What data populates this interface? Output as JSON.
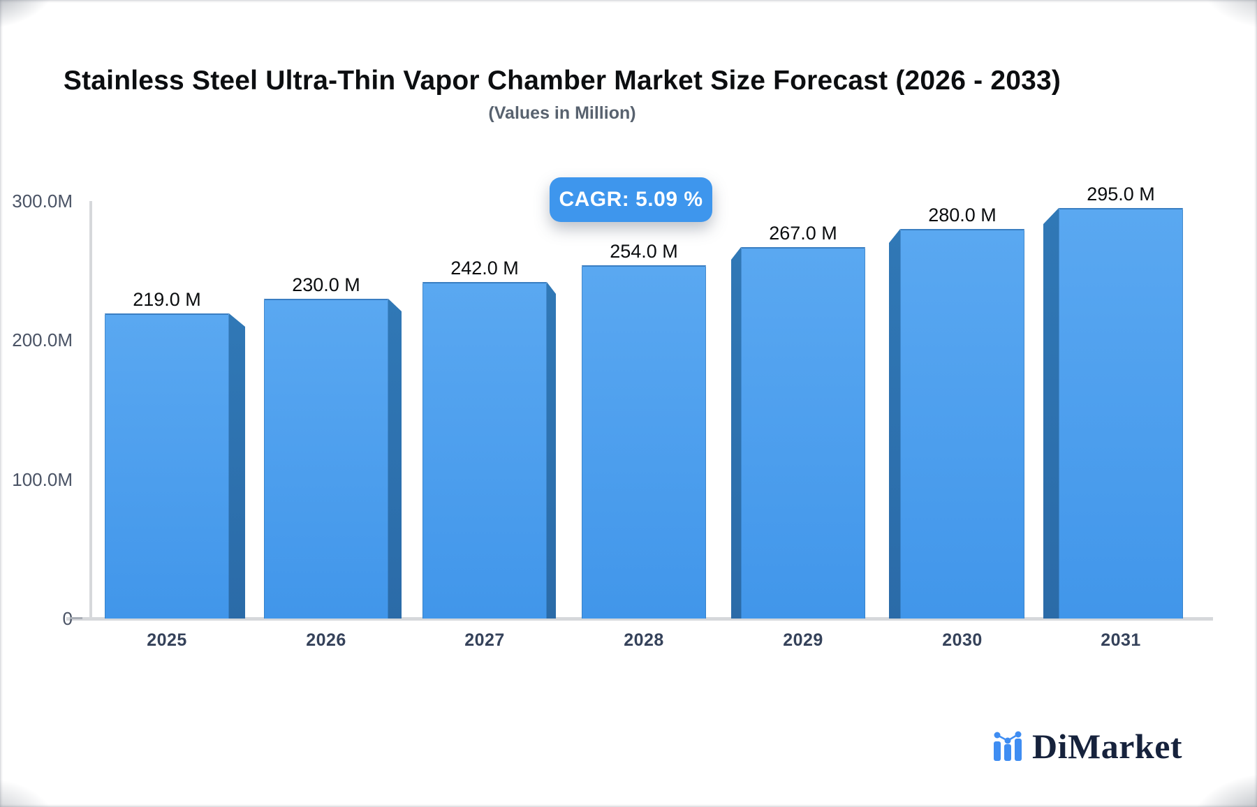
{
  "header": {
    "title": "Stainless Steel Ultra-Thin Vapor Chamber Market Size Forecast (2026 - 2033)",
    "subtitle": "(Values in Million)"
  },
  "badge": {
    "label": "CAGR: 5.09 %"
  },
  "chart_data": {
    "type": "bar",
    "title": "Stainless Steel Ultra-Thin Vapor Chamber Market Size Forecast (2026 - 2033)",
    "subtitle": "(Values in Million)",
    "unit": "Million",
    "categories": [
      "2025",
      "2026",
      "2027",
      "2028",
      "2029",
      "2030",
      "2031"
    ],
    "values": [
      219,
      230,
      242,
      254,
      267,
      280,
      295
    ],
    "bar_labels": [
      "219.0 M",
      "230.0 M",
      "242.0 M",
      "254.0 M",
      "267.0 M",
      "280.0 M",
      "295.0 M"
    ],
    "y_ticks": [
      {
        "label": "300.0M",
        "value": 300
      },
      {
        "label": "200.0M",
        "value": 200
      },
      {
        "label": "100.0M",
        "value": 100
      },
      {
        "label": "0",
        "value": 0
      }
    ],
    "ylim": [
      0,
      300
    ],
    "xlabel": "",
    "ylabel": "",
    "grid": false,
    "legend": "none",
    "cagr": "5.09 %"
  },
  "colors": {
    "bar_face_top": "#5aa8f1",
    "bar_face_bottom": "#4196ea",
    "bar_side": "#2f74b2",
    "badge_bg": "#3e96ed",
    "badge_text": "#ffffff",
    "axis_line": "#d6d8db",
    "title_text": "#0c0e10",
    "subtitle_text": "#58626f",
    "logo_navy": "#16223c",
    "logo_blue": "#3f8df2"
  },
  "brand": {
    "name": "DiMarket"
  }
}
